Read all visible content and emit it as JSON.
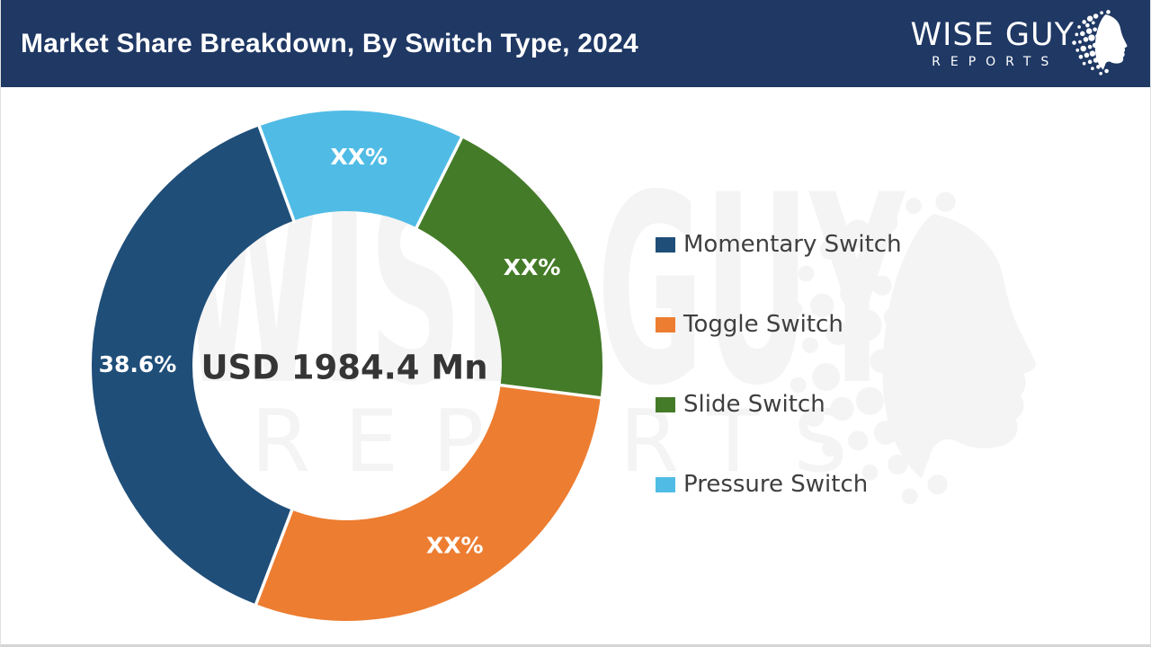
{
  "header": {
    "title": "Market Share Breakdown, By Switch Type, 2024",
    "logo": {
      "name": "WISE GUY",
      "subname": "REPORTS"
    }
  },
  "chart_data": {
    "type": "donut",
    "title": "Market Share Breakdown, By Switch Type, 2024",
    "center_label": "USD 1984.4 Mn",
    "start_angle_deg": 200.9,
    "legend_position": "right",
    "segments": [
      {
        "name": "Momentary Switch",
        "display_label": "38.6%",
        "pct": 38.6,
        "color": "#1F4E79"
      },
      {
        "name": "Pressure Switch",
        "display_label": "XX%",
        "pct": 13.0,
        "color": "#50BCE6"
      },
      {
        "name": "Slide Switch",
        "display_label": "XX%",
        "pct": 19.6,
        "color": "#447B28"
      },
      {
        "name": "Toggle Switch",
        "display_label": "XX%",
        "pct": 28.8,
        "color": "#ED7D31"
      }
    ]
  },
  "legend": {
    "items": [
      {
        "label": "Momentary Switch",
        "color": "#1F4E79"
      },
      {
        "label": "Toggle Switch",
        "color": "#ED7D31"
      },
      {
        "label": "Slide Switch",
        "color": "#447B28"
      },
      {
        "label": "Pressure Switch",
        "color": "#50BCE6"
      }
    ]
  },
  "watermark": {
    "line1": "WISE GUY",
    "line2": "REPORTS"
  },
  "theme": {
    "header_bg": "#1F3864",
    "text_dark": "#353535",
    "legend_text": "#3F3F3F",
    "watermark_color": "#F4F4F4",
    "bottom_border": "#D5D5D5"
  }
}
